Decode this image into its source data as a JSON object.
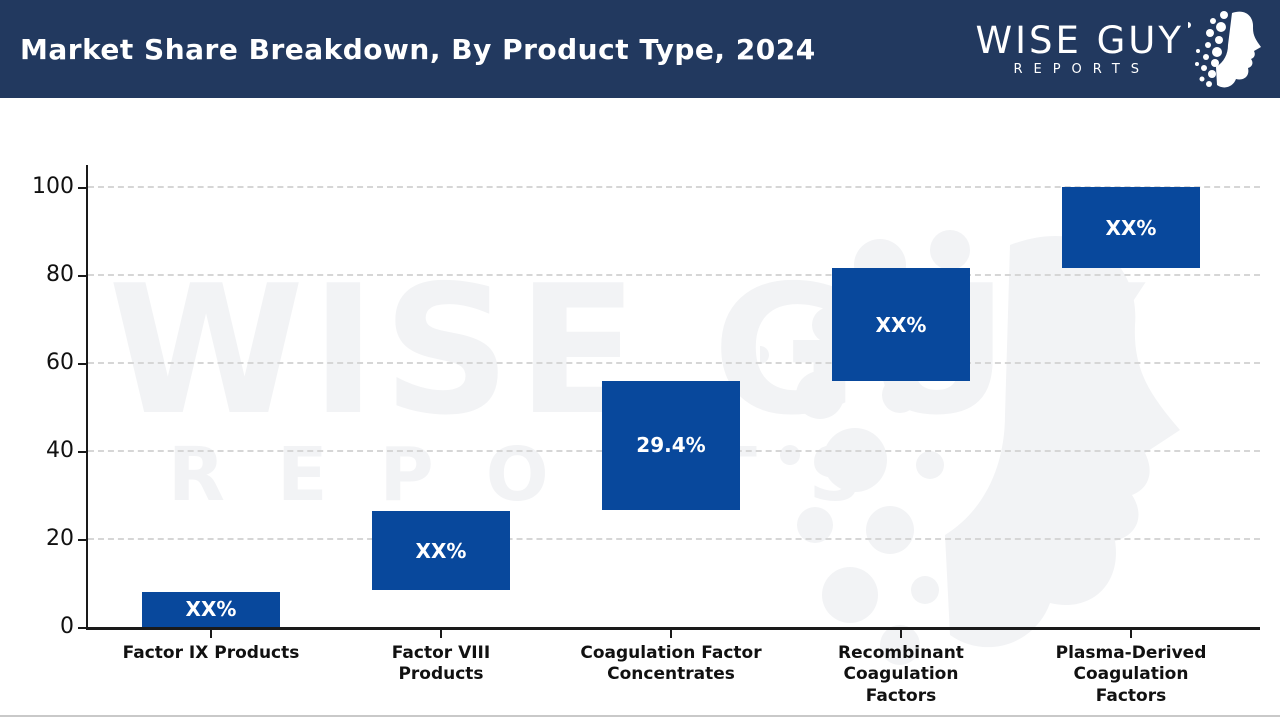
{
  "header": {
    "title": "Market Share Breakdown, By Product Type, 2024",
    "logo_line1": "WISE GUY",
    "logo_line2": "REPORTS"
  },
  "watermark": {
    "line1": "WISE GUY",
    "line2": "REPORTS"
  },
  "colors": {
    "header_bg": "#22395F",
    "bar": "#08489C",
    "grid": "#D6D6D6",
    "axis": "#1A1A1A",
    "watermark": "#F2F3F5"
  },
  "chart_data": {
    "type": "bar",
    "subtype": "floating-waterfall",
    "title": "Market Share Breakdown, By Product Type, 2024",
    "xlabel": "",
    "ylabel": "",
    "ylim": [
      0,
      105
    ],
    "y_ticks": [
      0,
      20,
      40,
      60,
      80,
      100
    ],
    "grid": "horizontal-dashed",
    "legend": "none",
    "bars": [
      {
        "category": "Factor IX Products",
        "start": 0,
        "end": 8.0,
        "label": "XX%"
      },
      {
        "category": "Factor VIII\nProducts",
        "start": 8.4,
        "end": 26.4,
        "label": "XX%"
      },
      {
        "category": "Coagulation Factor\nConcentrates",
        "start": 26.6,
        "end": 56.0,
        "label": "29.4%"
      },
      {
        "category": "Recombinant\nCoagulation\nFactors",
        "start": 56.0,
        "end": 81.6,
        "label": "XX%"
      },
      {
        "category": "Plasma-Derived\nCoagulation\nFactors",
        "start": 81.6,
        "end": 100.0,
        "label": "XX%"
      }
    ]
  }
}
